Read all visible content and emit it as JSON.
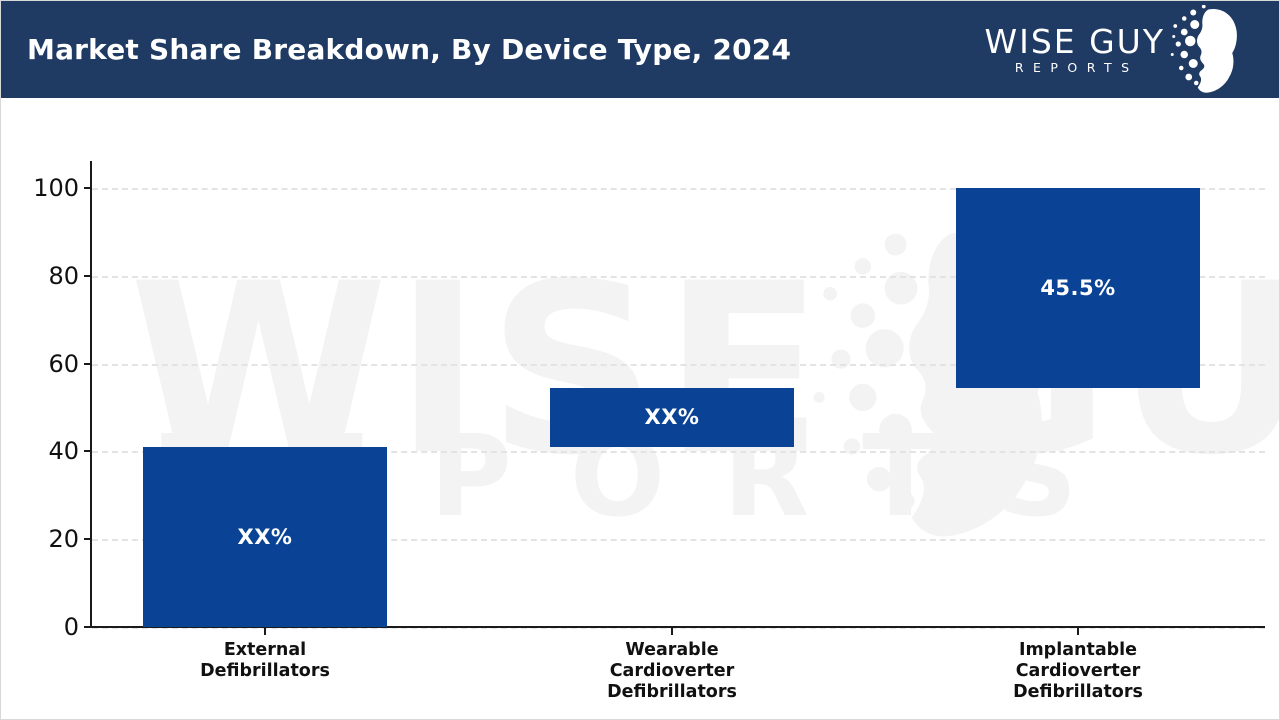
{
  "header": {
    "title": "Market Share Breakdown, By Device Type, 2024",
    "bg_color": "#1f3a63",
    "brand": {
      "name_top": "WISE GUY",
      "name_bottom": "REPORTS"
    }
  },
  "watermark": {
    "line1": "WISE GUY",
    "line2": "REPORTS"
  },
  "chart_data": {
    "type": "bar",
    "subtype": "waterfall-stacked-segments",
    "title": "Market Share Breakdown, By Device Type, 2024",
    "xlabel": "",
    "ylabel": "",
    "categories": [
      "External Defibrillators",
      "Wearable Cardioverter Defibrillators",
      "Implantable Cardioverter Defibrillators"
    ],
    "bars": [
      {
        "category": "External Defibrillators",
        "label_lines": [
          "External",
          "Defibrillators"
        ],
        "display_value": "XX%",
        "start": 0,
        "end": 41,
        "value": 41
      },
      {
        "category": "Wearable Cardioverter Defibrillators",
        "label_lines": [
          "Wearable",
          "Cardioverter",
          "Defibrillators"
        ],
        "display_value": "XX%",
        "start": 41,
        "end": 54.5,
        "value": 13.5
      },
      {
        "category": "Implantable Cardioverter Defibrillators",
        "label_lines": [
          "Implantable",
          "Cardioverter",
          "Defibrillators"
        ],
        "display_value": "45.5%",
        "start": 54.5,
        "end": 100,
        "value": 45.5
      }
    ],
    "yticks": [
      0,
      20,
      40,
      60,
      80,
      100
    ],
    "ylim": [
      0,
      106
    ],
    "grid": "horizontal-dashed",
    "legend": "none",
    "bar_color": "#0a4296",
    "bar_label_color": "#ffffff",
    "axis_color": "#1a1a1a"
  }
}
